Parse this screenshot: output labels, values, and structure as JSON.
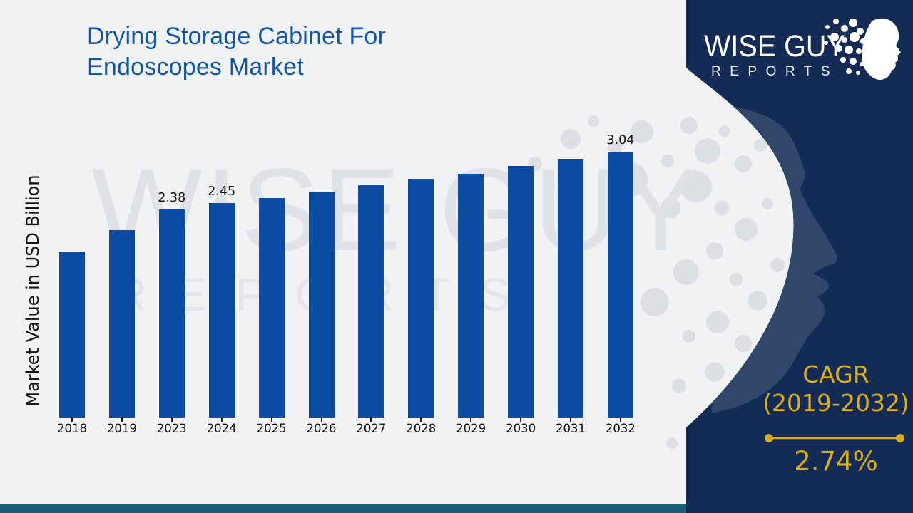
{
  "title": {
    "line1": "Drying Storage Cabinet For",
    "line2": "Endoscopes Market"
  },
  "y_axis_label": "Market Value in USD Billion",
  "watermark": {
    "line1": "WISE GUY",
    "line2": "REPORTS"
  },
  "logo": {
    "wordmark": "WISE GUY",
    "sub": "REPORTS"
  },
  "cagr": {
    "heading": "CAGR",
    "range": "(2019-2032)",
    "value": "2.74%"
  },
  "colors": {
    "bar_blue": "#0c4da3",
    "title_blue": "#1156a7",
    "panel_navy": "#142c55",
    "face_navy": "#31466b",
    "gold": "#d9ad1b",
    "teal_strip": "#1b5e7c",
    "background": "#f1f2f3"
  },
  "chart_data": {
    "type": "bar",
    "title": "Drying Storage Cabinet For Endoscopes Market",
    "xlabel": "",
    "ylabel": "Market Value in USD Billion",
    "categories": [
      "2018",
      "2019",
      "2023",
      "2024",
      "2025",
      "2026",
      "2027",
      "2028",
      "2029",
      "2030",
      "2031",
      "2032"
    ],
    "values": [
      1.9,
      2.14,
      2.38,
      2.45,
      2.51,
      2.58,
      2.66,
      2.73,
      2.79,
      2.88,
      2.96,
      3.04
    ],
    "value_labels": {
      "2023": "2.38",
      "2024": "2.45",
      "2032": "3.04"
    },
    "ylim": [
      0,
      3.3
    ],
    "grid": false,
    "legend": "none",
    "bar_color": "#0c4da3"
  }
}
